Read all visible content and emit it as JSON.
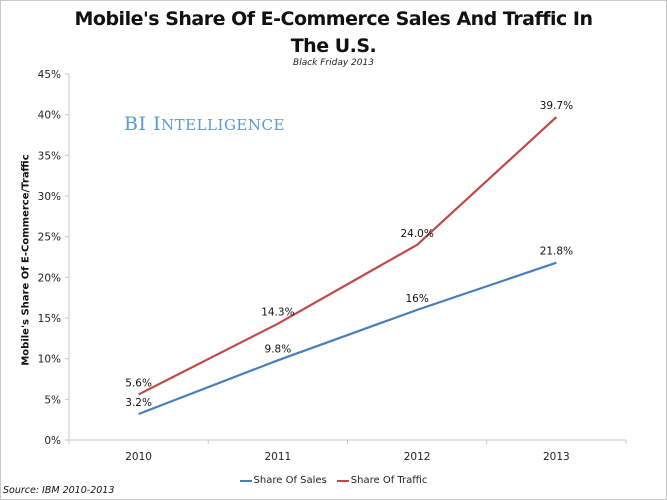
{
  "chart_data": {
    "type": "line",
    "title": "Mobile's Share Of E-Commerce Sales And Traffic In The U.S.",
    "subtitle": "Black Friday 2013",
    "xlabel": "",
    "ylabel": "Mobile's Share Of E-Commerce/Traffic",
    "categories": [
      "2010",
      "2011",
      "2012",
      "2013"
    ],
    "ylim": [
      0,
      45
    ],
    "yticks": [
      0,
      5,
      10,
      15,
      20,
      25,
      30,
      35,
      40,
      45
    ],
    "ytick_labels": [
      "0%",
      "5%",
      "10%",
      "15%",
      "20%",
      "25%",
      "30%",
      "35%",
      "40%",
      "45%"
    ],
    "grid": false,
    "legend_position": "bottom",
    "series": [
      {
        "name": "Share Of Sales",
        "color": "#4a7ebb",
        "values": [
          3.2,
          9.8,
          16,
          21.8
        ],
        "labels": [
          "3.2%",
          "9.8%",
          "16%",
          "21.8%"
        ]
      },
      {
        "name": "Share Of Traffic",
        "color": "#be4b48",
        "values": [
          5.6,
          14.3,
          24.0,
          39.7
        ],
        "labels": [
          "5.6%",
          "14.3%",
          "24.0%",
          "39.7%"
        ]
      }
    ],
    "watermark": {
      "main": "BI I",
      "small_caps": "NTELLIGENCE"
    },
    "source": "Source: IBM 2010-2013"
  },
  "title_line1": "Mobile's Share Of E-Commerce Sales And Traffic In",
  "title_line2": "The U.S."
}
